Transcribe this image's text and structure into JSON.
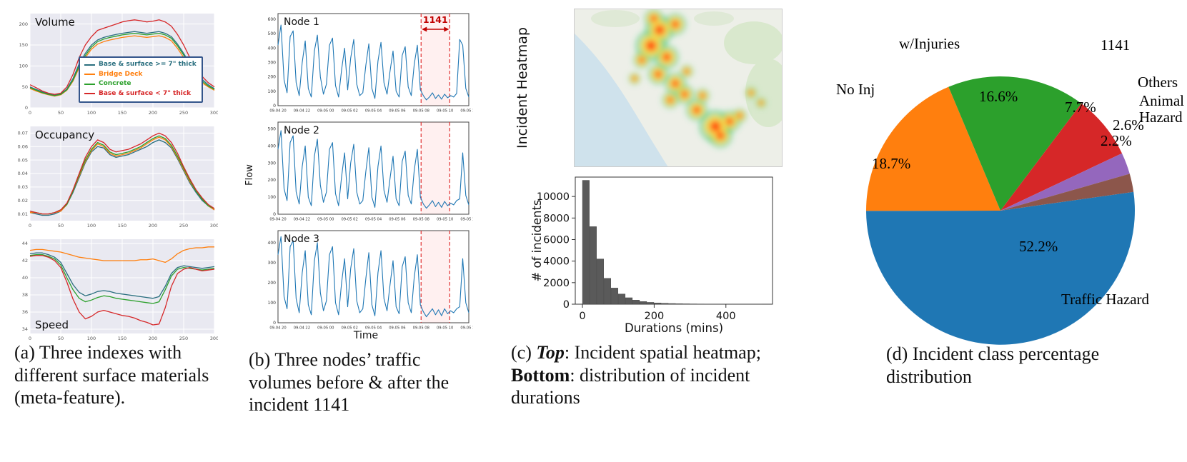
{
  "panel_a": {
    "caption": "(a) Three indexes with different surface materials (meta-feature)."
  },
  "panel_b": {
    "caption": "(b) Three nodes’ traffic volumes before & after the incident 1141",
    "ylabel": "Flow",
    "xlabel": "Time"
  },
  "panel_c": {
    "map_label": "Incident Heatmap",
    "caption_prefix": "(c) ",
    "caption_top_word": "Top",
    "caption_mid": ": Incident spatial heatmap; ",
    "caption_bottom_word": "Bottom",
    "caption_suffix": ": distribution of incident durations"
  },
  "panel_d": {
    "caption": "(d) Incident class percentage distribution"
  },
  "chart_data": [
    {
      "id": "volume",
      "type": "line",
      "title": "Volume",
      "x_start": 0,
      "x_step": 10,
      "xlim": [
        0,
        300
      ],
      "ylim": [
        0,
        225
      ],
      "yticks": [
        0,
        50,
        100,
        150,
        200
      ],
      "xticks": [
        0,
        50,
        100,
        150,
        200,
        250,
        300
      ],
      "series": [
        {
          "name": "Base & surface >= 7\" thick",
          "color": "#2a6f7f",
          "values": [
            50,
            44,
            38,
            33,
            30,
            33,
            45,
            70,
            105,
            130,
            150,
            162,
            168,
            172,
            175,
            178,
            180,
            182,
            180,
            178,
            180,
            182,
            178,
            170,
            152,
            130,
            105,
            85,
            68,
            55,
            46
          ]
        },
        {
          "name": "Bridge Deck",
          "color": "#ff7f0e",
          "values": [
            46,
            40,
            35,
            31,
            28,
            31,
            42,
            64,
            96,
            120,
            140,
            152,
            158,
            162,
            165,
            168,
            170,
            172,
            170,
            168,
            170,
            172,
            168,
            160,
            142,
            120,
            96,
            76,
            60,
            50,
            42
          ]
        },
        {
          "name": "Concrete",
          "color": "#2ca02c",
          "values": [
            48,
            42,
            36,
            32,
            29,
            32,
            43,
            66,
            100,
            125,
            145,
            158,
            164,
            168,
            171,
            174,
            176,
            178,
            176,
            174,
            176,
            178,
            174,
            166,
            148,
            126,
            100,
            80,
            64,
            52,
            44
          ]
        },
        {
          "name": "Base & surface < 7\" thick",
          "color": "#d62728",
          "values": [
            55,
            48,
            40,
            35,
            32,
            35,
            50,
            80,
            120,
            150,
            170,
            185,
            190,
            195,
            200,
            205,
            208,
            210,
            208,
            205,
            207,
            210,
            205,
            195,
            175,
            150,
            120,
            95,
            75,
            60,
            50
          ]
        }
      ]
    },
    {
      "id": "occupancy",
      "type": "line",
      "title": "Occupancy",
      "x_start": 0,
      "x_step": 10,
      "xlim": [
        0,
        300
      ],
      "ylim": [
        0.005,
        0.075
      ],
      "yticks": [
        0.01,
        0.02,
        0.03,
        0.04,
        0.05,
        0.06,
        0.07
      ],
      "xticks": [
        0,
        50,
        100,
        150,
        200,
        250,
        300
      ],
      "series": [
        {
          "name": "Base & surface >= 7\" thick",
          "color": "#2a6f7f",
          "values": [
            0.011,
            0.01,
            0.009,
            0.009,
            0.01,
            0.012,
            0.017,
            0.026,
            0.037,
            0.048,
            0.056,
            0.06,
            0.059,
            0.054,
            0.052,
            0.053,
            0.054,
            0.056,
            0.058,
            0.06,
            0.063,
            0.065,
            0.063,
            0.059,
            0.051,
            0.042,
            0.033,
            0.026,
            0.02,
            0.016,
            0.013
          ]
        },
        {
          "name": "Bridge Deck",
          "color": "#ff7f0e",
          "values": [
            0.011,
            0.011,
            0.01,
            0.01,
            0.011,
            0.012,
            0.017,
            0.027,
            0.038,
            0.049,
            0.057,
            0.062,
            0.06,
            0.055,
            0.053,
            0.054,
            0.055,
            0.057,
            0.059,
            0.062,
            0.065,
            0.067,
            0.065,
            0.06,
            0.052,
            0.043,
            0.034,
            0.027,
            0.021,
            0.016,
            0.013
          ]
        },
        {
          "name": "Concrete",
          "color": "#2ca02c",
          "values": [
            0.012,
            0.011,
            0.01,
            0.01,
            0.011,
            0.013,
            0.017,
            0.027,
            0.039,
            0.05,
            0.058,
            0.063,
            0.061,
            0.056,
            0.054,
            0.055,
            0.056,
            0.058,
            0.06,
            0.063,
            0.066,
            0.068,
            0.066,
            0.061,
            0.053,
            0.044,
            0.035,
            0.027,
            0.021,
            0.016,
            0.014
          ]
        },
        {
          "name": "Base & surface < 7\" thick",
          "color": "#d62728",
          "values": [
            0.012,
            0.011,
            0.01,
            0.01,
            0.011,
            0.013,
            0.018,
            0.028,
            0.04,
            0.052,
            0.06,
            0.065,
            0.063,
            0.058,
            0.056,
            0.057,
            0.058,
            0.06,
            0.062,
            0.065,
            0.068,
            0.07,
            0.068,
            0.063,
            0.055,
            0.045,
            0.036,
            0.028,
            0.022,
            0.017,
            0.014
          ]
        }
      ]
    },
    {
      "id": "speed",
      "type": "line",
      "title": "Speed",
      "x_start": 0,
      "x_step": 10,
      "xlim": [
        0,
        300
      ],
      "ylim": [
        33.5,
        44.5
      ],
      "yticks": [
        34,
        36,
        38,
        40,
        42,
        44
      ],
      "xticks": [
        0,
        50,
        100,
        150,
        200,
        250,
        300
      ],
      "series": [
        {
          "name": "Base & surface >= 7\" thick",
          "color": "#2a6f7f",
          "values": [
            42.8,
            42.9,
            42.9,
            42.7,
            42.4,
            41.8,
            40.5,
            39.2,
            38.3,
            37.9,
            38.1,
            38.4,
            38.5,
            38.4,
            38.2,
            38.1,
            38.0,
            37.9,
            37.8,
            37.7,
            37.6,
            37.8,
            39.0,
            40.5,
            41.2,
            41.4,
            41.3,
            41.2,
            41.1,
            41.2,
            41.3
          ]
        },
        {
          "name": "Bridge Deck",
          "color": "#ff7f0e",
          "values": [
            43.2,
            43.3,
            43.3,
            43.2,
            43.1,
            43.0,
            42.8,
            42.6,
            42.4,
            42.3,
            42.2,
            42.1,
            42.0,
            42.0,
            42.0,
            42.0,
            42.0,
            42.0,
            42.1,
            42.1,
            42.2,
            42.0,
            41.8,
            42.2,
            42.8,
            43.2,
            43.4,
            43.5,
            43.5,
            43.6,
            43.6
          ]
        },
        {
          "name": "Concrete",
          "color": "#2ca02c",
          "values": [
            42.6,
            42.7,
            42.7,
            42.5,
            42.2,
            41.5,
            40.0,
            38.6,
            37.6,
            37.2,
            37.4,
            37.7,
            37.9,
            37.8,
            37.6,
            37.5,
            37.4,
            37.3,
            37.2,
            37.1,
            37.0,
            37.2,
            38.6,
            40.2,
            41.0,
            41.2,
            41.1,
            41.0,
            40.9,
            41.0,
            41.1
          ]
        },
        {
          "name": "Base & surface < 7\" thick",
          "color": "#d62728",
          "values": [
            42.5,
            42.6,
            42.6,
            42.4,
            42.0,
            41.2,
            39.5,
            37.5,
            36.0,
            35.2,
            35.5,
            36.0,
            36.2,
            36.0,
            35.8,
            35.6,
            35.5,
            35.3,
            35.0,
            34.8,
            34.5,
            34.6,
            36.5,
            39.0,
            40.5,
            41.0,
            41.2,
            41.0,
            40.8,
            40.9,
            41.0
          ]
        }
      ]
    },
    {
      "id": "node1",
      "type": "line",
      "title": "Node 1",
      "color": "#1f77b4",
      "ylim": [
        0,
        640
      ],
      "yticks": [
        0,
        100,
        200,
        300,
        400,
        500,
        600
      ],
      "xtick_labels": [
        "09-04 20",
        "09-04 22",
        "09-05 00",
        "09-05 02",
        "09-05 04",
        "09-05 06",
        "09-05 08",
        "09-05 10",
        "09-05 12"
      ],
      "band_frac": [
        0.75,
        0.9
      ],
      "annotation": "1141",
      "values": [
        420,
        560,
        180,
        90,
        480,
        520,
        160,
        70,
        300,
        450,
        120,
        60,
        380,
        490,
        200,
        80,
        150,
        420,
        470,
        140,
        60,
        250,
        400,
        110,
        330,
        460,
        150,
        70,
        90,
        280,
        430,
        120,
        50,
        310,
        440,
        160,
        80,
        240,
        380,
        100,
        60,
        350,
        410,
        130,
        70,
        290,
        420,
        110,
        70,
        40,
        60,
        90,
        50,
        75,
        45,
        80,
        55,
        70,
        60,
        85,
        460,
        420,
        120,
        60
      ]
    },
    {
      "id": "node2",
      "type": "line",
      "title": "Node 2",
      "color": "#1f77b4",
      "ylim": [
        0,
        540
      ],
      "yticks": [
        0,
        100,
        200,
        300,
        400,
        500
      ],
      "xtick_labels": [
        "09-04 20",
        "09-04 22",
        "09-05 00",
        "09-05 02",
        "09-05 04",
        "09-05 06",
        "09-05 08",
        "09-05 10",
        "09-05 12"
      ],
      "band_frac": [
        0.75,
        0.9
      ],
      "annotation": "",
      "values": [
        380,
        490,
        150,
        80,
        420,
        460,
        130,
        60,
        280,
        400,
        100,
        50,
        340,
        440,
        170,
        70,
        130,
        380,
        420,
        120,
        50,
        220,
        360,
        90,
        300,
        410,
        130,
        60,
        80,
        250,
        390,
        100,
        40,
        280,
        400,
        140,
        70,
        210,
        340,
        90,
        50,
        310,
        370,
        110,
        60,
        260,
        380,
        100,
        60,
        35,
        55,
        80,
        45,
        70,
        40,
        75,
        50,
        65,
        55,
        80,
        90,
        360,
        110,
        55
      ]
    },
    {
      "id": "node3",
      "type": "line",
      "title": "Node 3",
      "color": "#1f77b4",
      "ylim": [
        0,
        460
      ],
      "yticks": [
        0,
        100,
        200,
        300,
        400
      ],
      "xtick_labels": [
        "09-04 20",
        "09-04 22",
        "09-05 00",
        "09-05 02",
        "09-05 04",
        "09-05 06",
        "09-05 08",
        "09-05 10",
        "09-05 12"
      ],
      "band_frac": [
        0.75,
        0.9
      ],
      "annotation": "",
      "values": [
        340,
        430,
        130,
        70,
        380,
        410,
        120,
        50,
        250,
        360,
        90,
        40,
        310,
        400,
        150,
        60,
        110,
        340,
        380,
        100,
        40,
        200,
        320,
        80,
        270,
        370,
        110,
        50,
        70,
        220,
        350,
        90,
        35,
        250,
        360,
        120,
        60,
        190,
        310,
        80,
        45,
        280,
        330,
        100,
        50,
        230,
        340,
        90,
        55,
        30,
        50,
        70,
        40,
        65,
        35,
        70,
        45,
        60,
        50,
        70,
        80,
        320,
        100,
        50
      ]
    },
    {
      "id": "durations",
      "type": "bar",
      "ylabel": "# of incidents",
      "xlabel": "Durations (mins)",
      "bin_start": 0,
      "bin_width": 20,
      "values": [
        11500,
        7200,
        4200,
        2400,
        1500,
        950,
        600,
        380,
        250,
        170,
        120,
        90,
        65,
        48,
        36,
        28,
        22,
        17,
        13,
        10,
        8,
        6,
        5,
        4,
        3
      ],
      "yticks": [
        0,
        2000,
        4000,
        6000,
        8000,
        10000
      ],
      "xticks": [
        0,
        200,
        400
      ],
      "ylim": [
        0,
        11800
      ],
      "xlim": [
        -20,
        530
      ]
    },
    {
      "id": "classes",
      "type": "pie",
      "start_angle": 8,
      "clockwise": true,
      "slices": [
        {
          "label": "Traffic Hazard",
          "value": 52.2,
          "pct": "52.2%",
          "color": "#1f77b4"
        },
        {
          "label": "No Inj",
          "value": 18.7,
          "pct": "18.7%",
          "color": "#ff7f0e"
        },
        {
          "label": "w/Injuries",
          "value": 16.6,
          "pct": "16.6%",
          "color": "#2ca02c"
        },
        {
          "label": "1141",
          "value": 7.7,
          "pct": "7.7%",
          "color": "#d62728"
        },
        {
          "label": "Others",
          "value": 2.6,
          "pct": "2.6%",
          "color": "#9467bd"
        },
        {
          "label": "Animal Hazard",
          "value": 2.2,
          "pct": "2.2%",
          "color": "#8c564b"
        }
      ]
    }
  ]
}
